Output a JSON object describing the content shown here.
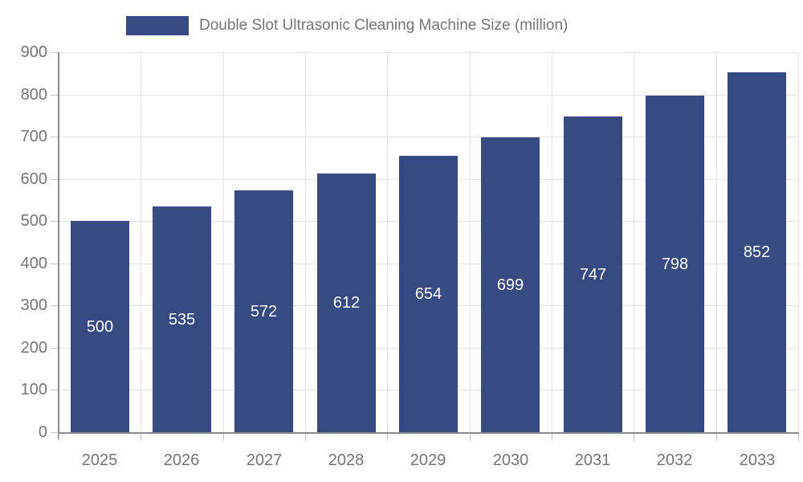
{
  "chart_data": {
    "type": "bar",
    "title": "Double Slot Ultrasonic Cleaning Machine Size (million)",
    "categories": [
      "2025",
      "2026",
      "2027",
      "2028",
      "2029",
      "2030",
      "2031",
      "2032",
      "2033"
    ],
    "values": [
      500,
      535,
      572,
      612,
      654,
      699,
      747,
      798,
      852
    ],
    "xlabel": "",
    "ylabel": "",
    "ylim": [
      0,
      900
    ],
    "yticks": [
      0,
      100,
      200,
      300,
      400,
      500,
      600,
      700,
      800,
      900
    ],
    "grid": true,
    "legend_position": "top",
    "bar_labels_visible": true,
    "colors": {
      "bar": "#374a82",
      "bar_label_text": "#ffffff",
      "axis_text": "#757575",
      "title_text": "#757575",
      "gridline": "#e3e3e3",
      "axis_line": "#8a8a8a",
      "tick": "#c4c4c4",
      "background": "#ffffff"
    }
  }
}
